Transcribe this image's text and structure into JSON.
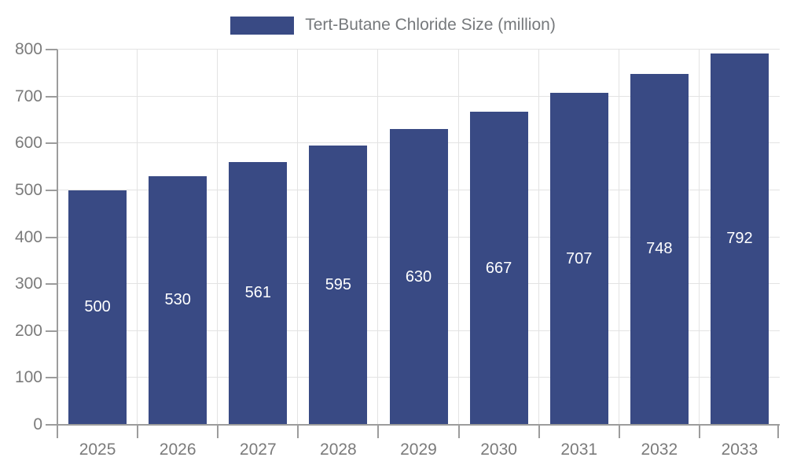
{
  "legend": {
    "label": "Tert-Butane Chloride Size (million)"
  },
  "colors": {
    "bar": "#394A84",
    "grid": "#e3e3e3",
    "axis": "#9c9c9c",
    "tick_text": "#7b7b7b",
    "legend_text": "#76797c",
    "value_text": "#ffffff",
    "background": "#ffffff"
  },
  "chart_data": {
    "type": "bar",
    "title": "Tert-Butane Chloride Size (million)",
    "categories": [
      "2025",
      "2026",
      "2027",
      "2028",
      "2029",
      "2030",
      "2031",
      "2032",
      "2033"
    ],
    "values": [
      500,
      530,
      561,
      595,
      630,
      667,
      707,
      748,
      792
    ],
    "xlabel": "",
    "ylabel": "",
    "ylim": [
      0,
      800
    ],
    "ytick_step": 100,
    "ytick_labels": [
      "0",
      "100",
      "200",
      "300",
      "400",
      "500",
      "600",
      "700",
      "800"
    ],
    "grid": true,
    "legend_position": "top-center",
    "bar_value_labels": true,
    "bar_label_position": "center-inside"
  }
}
